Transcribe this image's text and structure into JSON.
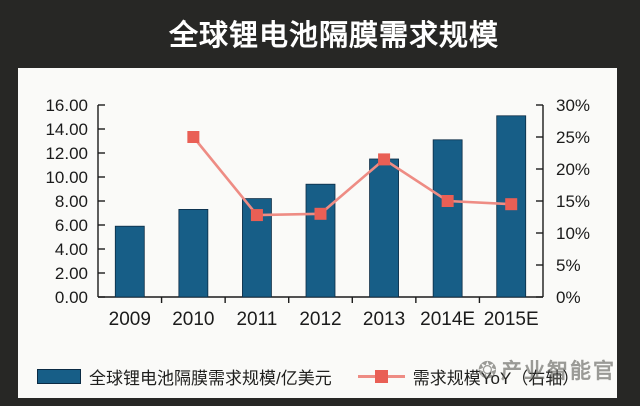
{
  "page": {
    "title": "全球锂电池隔膜需求规模",
    "watermark": "产业智能官"
  },
  "legend": {
    "bar_label": "全球锂电池隔膜需求规模/亿美元",
    "line_label": "需求规模YoY（右轴）"
  },
  "chart_data": {
    "type": "bar",
    "title": "全球锂电池隔膜需求规模",
    "categories": [
      "2009",
      "2010",
      "2011",
      "2012",
      "2013",
      "2014E",
      "2015E"
    ],
    "series": [
      {
        "name": "全球锂电池隔膜需求规模/亿美元",
        "type": "bar",
        "axis": "left",
        "color": "#175e87",
        "border_color": "#0b2b44",
        "values": [
          5.9,
          7.3,
          8.2,
          9.4,
          11.5,
          13.1,
          15.1
        ]
      },
      {
        "name": "需求规模YoY（右轴）",
        "type": "line",
        "axis": "right",
        "color": "#ee8c84",
        "marker_color": "#e95f55",
        "values": [
          null,
          25,
          12.8,
          13,
          21.5,
          15,
          14.5
        ]
      }
    ],
    "left_axis": {
      "min": 0,
      "max": 16,
      "step": 2,
      "ticks": [
        "0.00",
        "2.00",
        "4.00",
        "6.00",
        "8.00",
        "10.00",
        "12.00",
        "14.00",
        "16.00"
      ]
    },
    "right_axis": {
      "min": 0,
      "max": 30,
      "step": 5,
      "ticks": [
        "0%",
        "5%",
        "10%",
        "15%",
        "20%",
        "25%",
        "30%"
      ]
    },
    "legend_position": "bottom",
    "grid": false,
    "plot_background": "#fafaf8",
    "page_background": "#272725"
  }
}
